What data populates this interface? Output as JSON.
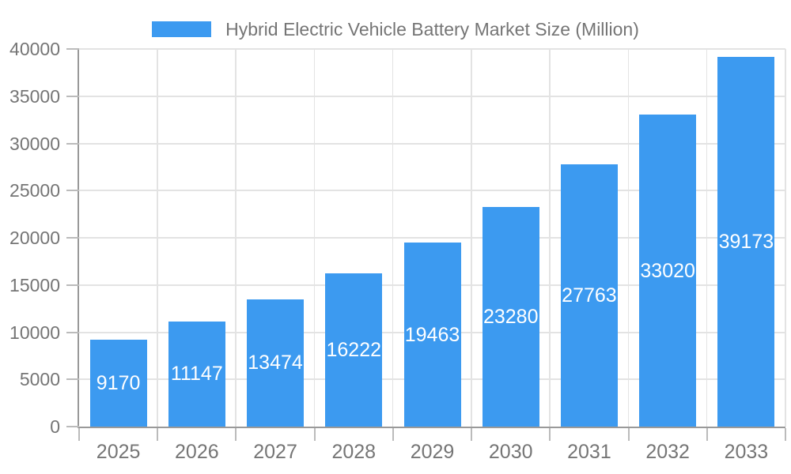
{
  "chart_data": {
    "type": "bar",
    "title": "Hybrid Electric Vehicle Battery Market Size (Million)",
    "series_name": "Hybrid Electric Vehicle Battery Market Size (Million)",
    "categories": [
      "2025",
      "2026",
      "2027",
      "2028",
      "2029",
      "2030",
      "2031",
      "2032",
      "2033"
    ],
    "values": [
      9170,
      11147,
      13474,
      16222,
      19463,
      23280,
      27763,
      33020,
      39173
    ],
    "xlabel": "",
    "ylabel": "",
    "ylim": [
      0,
      40000
    ],
    "yticks": [
      0,
      5000,
      10000,
      15000,
      20000,
      25000,
      30000,
      35000,
      40000
    ],
    "grid": true,
    "legend_position": "top",
    "value_labels_position": "inside-center",
    "colors": {
      "bar": "#3C9AF0",
      "value_label": "#ffffff",
      "axis_label": "#757575",
      "legend_label": "#757575",
      "gridline": "#e3e3e3",
      "axis_line": "#999999",
      "tick_mark": "#bbbbbb",
      "background": "#ffffff"
    }
  }
}
